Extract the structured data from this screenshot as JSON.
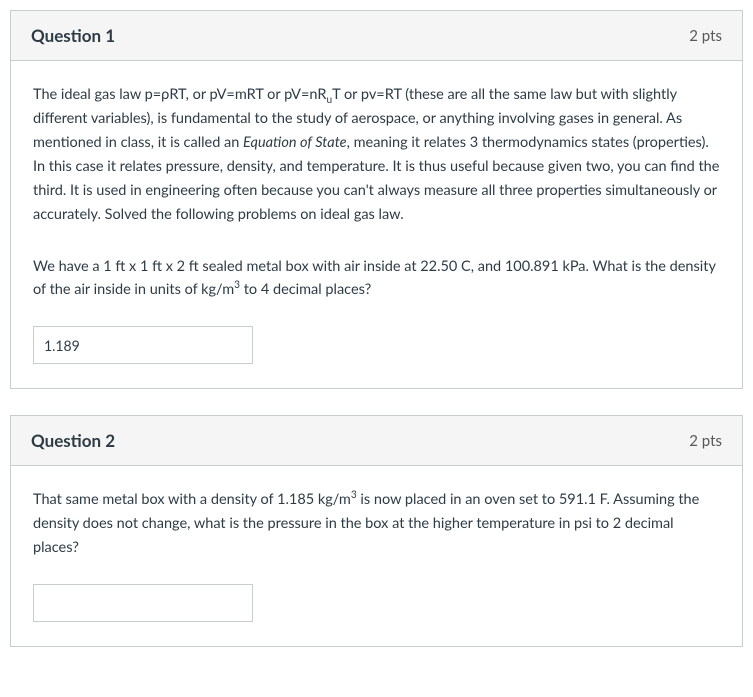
{
  "questions": [
    {
      "title": "Question 1",
      "pts": "2 pts",
      "body_html": "The ideal gas law p=ρRT, or pV=mRT or pV=nR<sub>u</sub>T or pv=RT (these are all the same law but with slightly different variables), is fundamental to the study of aerospace, or anything involving gases in general. As mentioned in class, it is called an <em>Equation of State</em>, meaning it relates 3 thermodynamics states (properties). In this case it relates pressure, density, and temperature. It is thus useful because given two, you can find the third. It is used in engineering often because you can't always measure all three properties simultaneously or accurately. Solved the following problems on ideal gas law.<div class=\"para-gap\"></div>We have a 1 ft x 1 ft x 2 ft sealed metal box with air inside at 22.50 C, and 100.891 kPa. What is the density of the air inside in units of kg/m<sup>3</sup> to 4 decimal places?",
      "answer_value": "1.189"
    },
    {
      "title": "Question 2",
      "pts": "2 pts",
      "body_html": "That same metal box with a density of 1.185 kg/m<sup>3</sup> is now placed in an oven set to 591.1 F. Assuming the density does not change, what is the pressure in the box at the higher temperature in psi to 2 decimal places?",
      "answer_value": ""
    }
  ],
  "colors": {
    "border": "#c7cdd1",
    "header_bg": "#f5f5f5",
    "text": "#2d3b45",
    "pts_text": "#595959"
  }
}
